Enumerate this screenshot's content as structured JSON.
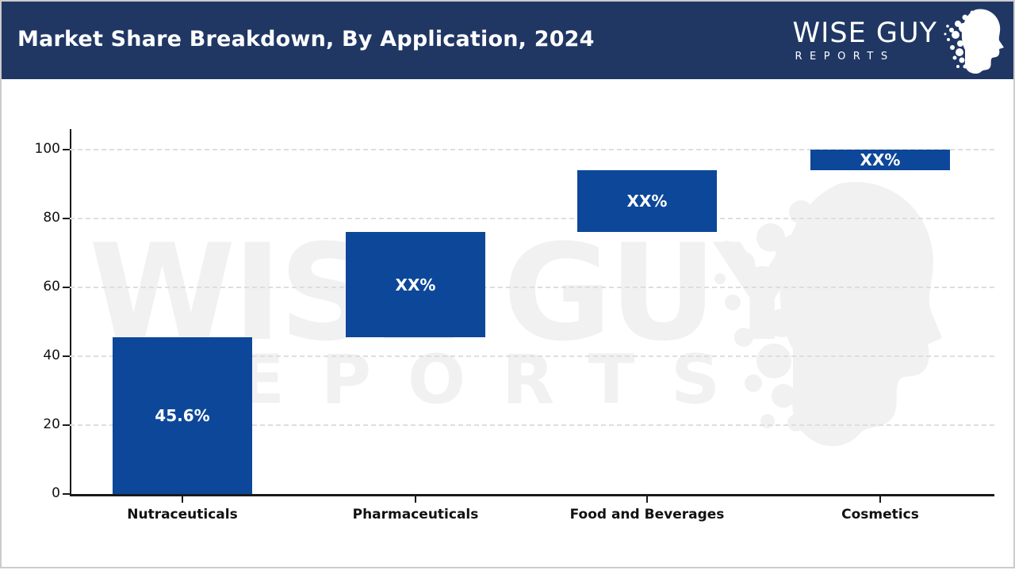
{
  "header": {
    "title": "Market Share Breakdown, By Application, 2024",
    "logo": {
      "line1": "WISE GUY",
      "line2": "REPORTS"
    }
  },
  "watermark": {
    "line1": "WISE GUY",
    "line2": "REPORTS"
  },
  "chart_data": {
    "type": "bar",
    "subtype": "waterfall",
    "title": "Market Share Breakdown, By Application, 2024",
    "categories": [
      "Nutraceuticals",
      "Pharmaceuticals",
      "Food and Beverages",
      "Cosmetics"
    ],
    "bars": [
      {
        "category": "Nutraceuticals",
        "start": 0,
        "end": 45.6,
        "label": "45.6%"
      },
      {
        "category": "Pharmaceuticals",
        "start": 45.6,
        "end": 76,
        "label": "XX%"
      },
      {
        "category": "Food and Beverages",
        "start": 76,
        "end": 94,
        "label": "XX%"
      },
      {
        "category": "Cosmetics",
        "start": 94,
        "end": 100,
        "label": "XX%"
      }
    ],
    "yticks": [
      0,
      20,
      40,
      60,
      80,
      100
    ],
    "ylim": [
      0,
      106
    ],
    "grid": "horizontal-dashed",
    "legend": "none",
    "bar_color": "#0d4799",
    "bar_label_color": "#ffffff",
    "axis_color": "#1a1a1a",
    "gridline_color": "#dedede"
  }
}
